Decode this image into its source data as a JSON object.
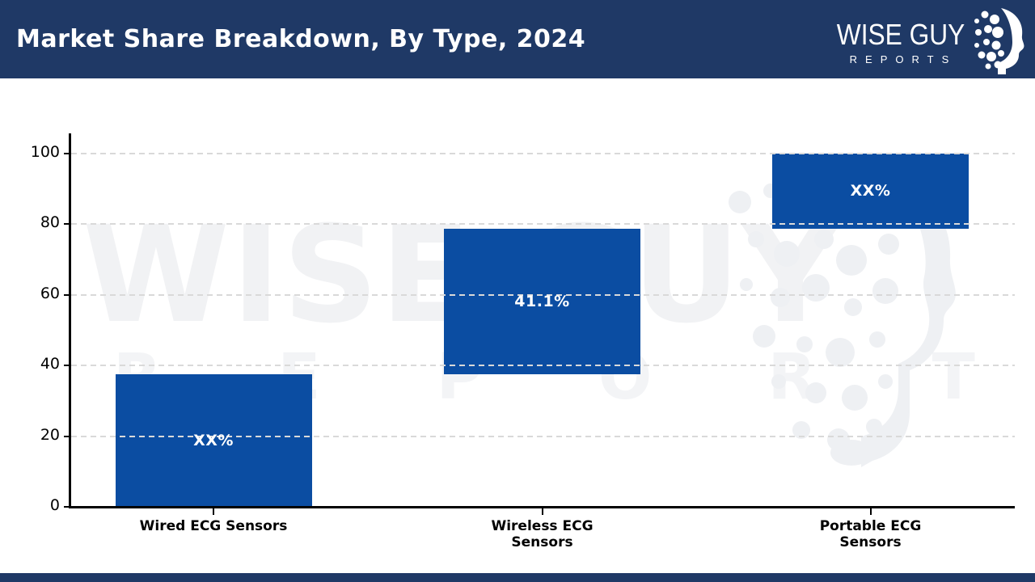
{
  "header": {
    "title": "Market Share Breakdown, By Type, 2024",
    "brand": {
      "line1": "WISE GUY",
      "line2": "REPORTS"
    }
  },
  "watermark": {
    "line1": "WISE GUY",
    "line2": "R E P O R T S"
  },
  "chart_data": {
    "type": "bar",
    "variant": "stacked-waterfall",
    "title": "Market Share Breakdown, By Type, 2024",
    "categories": [
      "Wired ECG Sensors",
      "Wireless ECG Sensors",
      "Portable ECG Sensors"
    ],
    "category_lines": [
      [
        "Wired ECG Sensors"
      ],
      [
        "Wireless ECG",
        "Sensors"
      ],
      [
        "Portable ECG",
        "Sensors"
      ]
    ],
    "values": [
      37.5,
      41.1,
      21.4
    ],
    "starts": [
      0,
      37.5,
      78.6
    ],
    "bar_labels": [
      "XX%",
      "41.1%",
      "XX%"
    ],
    "yticks": [
      0,
      20,
      40,
      60,
      80,
      100
    ],
    "ylim": [
      0,
      105.5
    ],
    "xlabel": "",
    "ylabel": "",
    "legend": false,
    "grid": "dashed-horizontal",
    "bar_color": "#0b4da2",
    "bar_label_color": "#ffffff"
  },
  "colors": {
    "header_bg": "#1f3966",
    "footer_bg": "#1f3966",
    "bar": "#0b4da2",
    "grid": "#d9d9d9",
    "axis": "#000000",
    "watermark": "#f1f2f4"
  }
}
